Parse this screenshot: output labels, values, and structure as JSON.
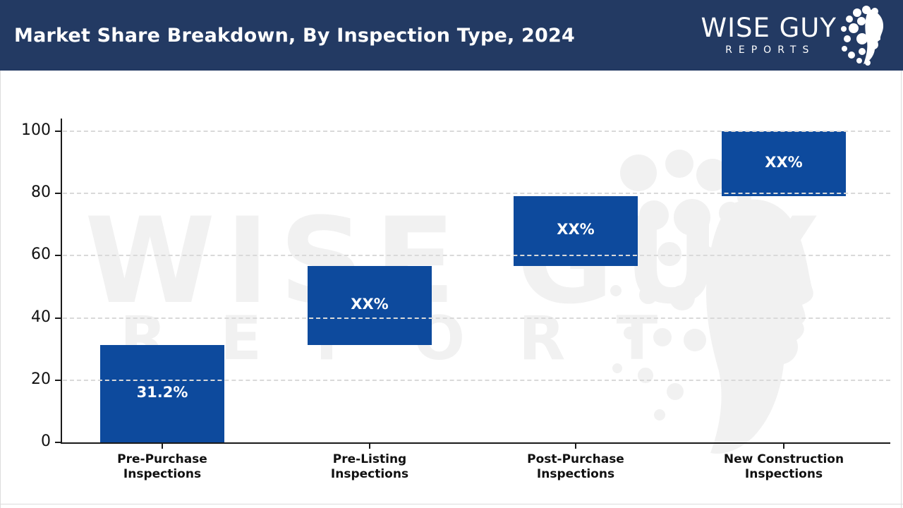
{
  "page": {
    "background": "#ffffff",
    "border_color": "#dcdcdc"
  },
  "header": {
    "background": "#233A63",
    "title": "Market Share Breakdown, By Inspection Type, 2024",
    "title_color": "#ffffff",
    "logo": {
      "wordmark": "WISE GUY",
      "sub": "REPORTS",
      "icon": "dotted-head-profile-icon",
      "color": "#ffffff"
    }
  },
  "watermark": {
    "line1": "WISE GUY",
    "line2": "REPORTS",
    "icon": "dotted-head-profile-watermark",
    "color": "#f1f1f1"
  },
  "chart_data": {
    "type": "bar",
    "variant": "waterfall",
    "title": "Market Share Breakdown, By Inspection Type, 2024",
    "categories": [
      "Pre-Purchase Inspections",
      "Pre-Listing Inspections",
      "Post-Purchase Inspections",
      "New Construction Inspections"
    ],
    "segments": [
      {
        "label": "31.2%",
        "start": 0,
        "end": 31.2
      },
      {
        "label": "XX%",
        "start": 31.2,
        "end": 56.8
      },
      {
        "label": "XX%",
        "start": 56.8,
        "end": 79.2
      },
      {
        "label": "XX%",
        "start": 79.2,
        "end": 100
      }
    ],
    "bar_color": "#0D4A9D",
    "bar_label_color": "#ffffff",
    "xlabel": "",
    "ylabel": "",
    "ylim": [
      0,
      100
    ],
    "yticks": [
      0,
      20,
      40,
      60,
      80,
      100
    ],
    "grid": "horizontal-dashed-above-bars",
    "grid_color": "#d9d9d9",
    "axis_color": "#1a1a1a",
    "legend": "none"
  }
}
